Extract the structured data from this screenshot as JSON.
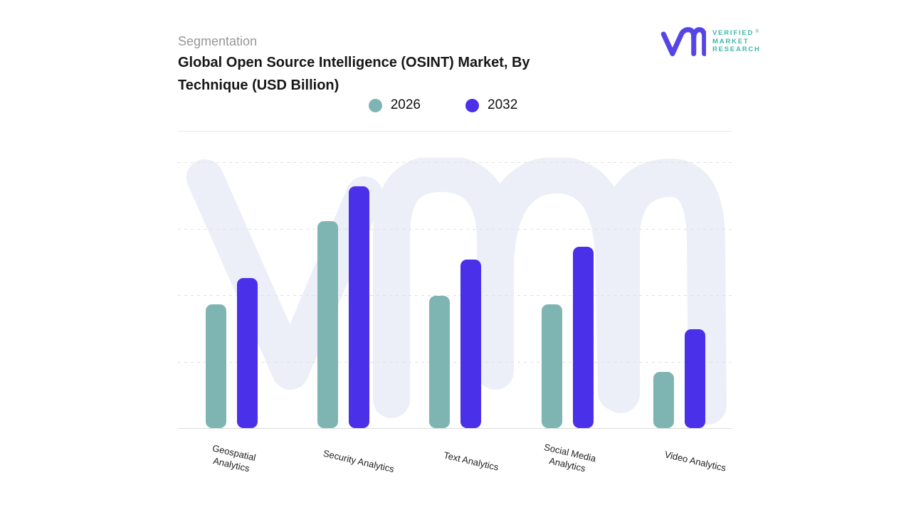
{
  "header": {
    "eyebrow": "Segmentation",
    "title_line1": "Global Open Source Intelligence (OSINT) Market, By",
    "title_line2": "Technique (USD Billion)"
  },
  "logo": {
    "words": [
      "VERIFIED",
      "MARKET",
      "RESEARCH"
    ],
    "registered_mark": "®",
    "mark_color": "#5645E6",
    "text_color": "#3EB7AE"
  },
  "chart_data": {
    "type": "bar",
    "title": "Global Open Source Intelligence (OSINT) Market, By Technique (USD Billion)",
    "categories": [
      "Geospatial Analytics",
      "Security Analytics",
      "Text Analytics",
      "Social Media Analytics",
      "Video Analytics"
    ],
    "category_label_lines": [
      [
        "Geospatial",
        "Analytics"
      ],
      [
        "Security Analytics"
      ],
      [
        "Text Analytics"
      ],
      [
        "Social Media",
        "Analytics"
      ],
      [
        "Video Analytics"
      ]
    ],
    "series": [
      {
        "name": "2026",
        "color": "#7EB5B2",
        "values": [
          1.86,
          3.11,
          1.99,
          1.86,
          0.84
        ]
      },
      {
        "name": "2032",
        "color": "#4A30E8",
        "values": [
          2.26,
          3.64,
          2.53,
          2.73,
          1.49
        ]
      }
    ],
    "xlabel": "",
    "ylabel": "",
    "ylim": [
      0,
      4
    ],
    "y_axis_labels_visible": false,
    "gridlines": "horizontal-dashed",
    "legend_position": "top-center",
    "grid_color": "#e1e1e1",
    "axis_line_color": "#dcdcdc",
    "watermark_color": "#ECEFF8"
  }
}
